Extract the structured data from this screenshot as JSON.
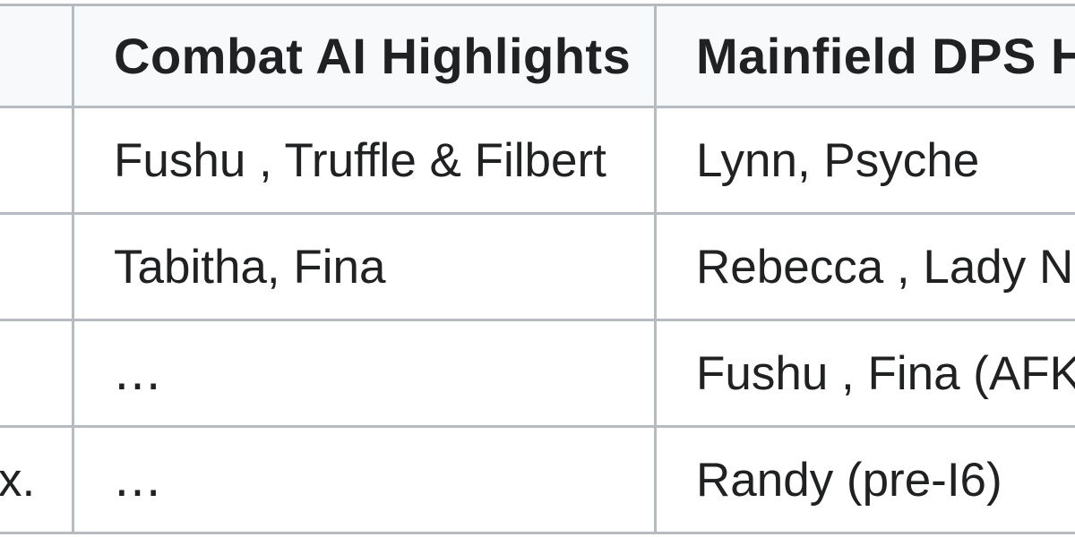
{
  "page": {
    "background": "#ffffff"
  },
  "table": {
    "style": {
      "border_color": "#b6bbc2",
      "header_bg": "#f8f9fa",
      "text_color": "#202122"
    },
    "columns": [
      {
        "header": ""
      },
      {
        "header": "Combat AI Highlights"
      },
      {
        "header": "Mainfield DPS Hi"
      }
    ],
    "rows": [
      {
        "label": "",
        "combat_ai": "Fushu , Truffle & Filbert",
        "mainfield_dps": "Lynn, Psyche"
      },
      {
        "label": "",
        "combat_ai": "Tabitha, Fina",
        "mainfield_dps": "Rebecca , Lady N"
      },
      {
        "label": "",
        "combat_ai": "…",
        "mainfield_dps": "Fushu , Fina (AFK"
      },
      {
        "label": "x.",
        "combat_ai": "…",
        "mainfield_dps": "Randy (pre-I6)"
      }
    ]
  }
}
